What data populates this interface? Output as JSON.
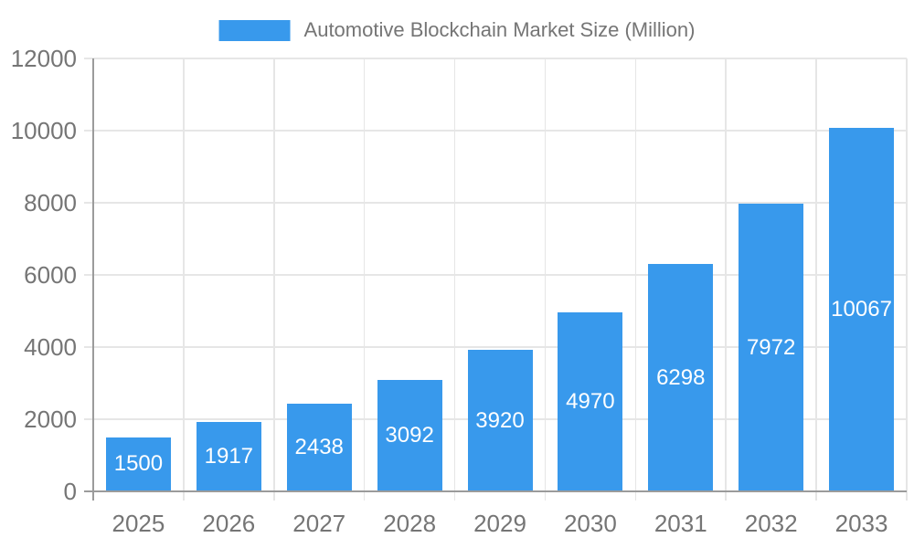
{
  "legend": {
    "label": "Automotive Blockchain Market Size (Million)"
  },
  "chart_data": {
    "type": "bar",
    "title": "Automotive Blockchain Market Size (Million)",
    "series_name": "Automotive Blockchain Market Size (Million)",
    "categories": [
      "2025",
      "2026",
      "2027",
      "2028",
      "2029",
      "2030",
      "2031",
      "2032",
      "2033"
    ],
    "values": [
      1500,
      1917,
      2438,
      3092,
      3920,
      4970,
      6298,
      7972,
      10067
    ],
    "value_labels": [
      "1500",
      "1917",
      "2438",
      "3092",
      "3920",
      "4970",
      "6298",
      "7972",
      "10067"
    ],
    "xlabel": "",
    "ylabel": "",
    "ylim": [
      0,
      12000
    ],
    "yticks": [
      0,
      2000,
      4000,
      6000,
      8000,
      10000,
      12000
    ],
    "grid": true,
    "legend_position": "top",
    "value_labels_position": "inside-center"
  },
  "colors": {
    "bar": "#3899ec",
    "grid": "#e6e6e6",
    "axis": "#9b9b9b",
    "tick_text": "#757575",
    "legend_text": "#757575",
    "value_text": "#ffffff",
    "background": "#ffffff"
  }
}
